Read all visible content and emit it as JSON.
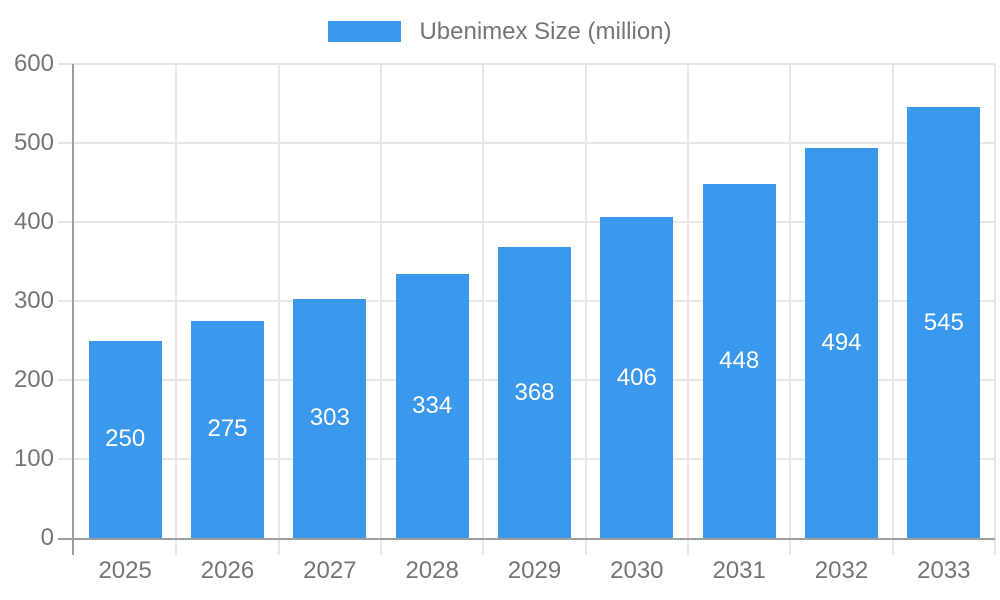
{
  "chart_data": {
    "type": "bar",
    "categories": [
      "2025",
      "2026",
      "2027",
      "2028",
      "2029",
      "2030",
      "2031",
      "2032",
      "2033"
    ],
    "series": [
      {
        "name": "Ubenimex Size (million)",
        "values": [
          250,
          275,
          303,
          334,
          368,
          406,
          448,
          494,
          545
        ]
      }
    ],
    "title": "",
    "xlabel": "",
    "ylabel": "",
    "ylim": [
      0,
      600
    ],
    "ytick_step": 100,
    "yticks": [
      0,
      100,
      200,
      300,
      400,
      500,
      600
    ],
    "grid": true,
    "legend_position": "top",
    "value_labels": "inside-center",
    "colors": {
      "bar": "#3a98ed",
      "value_label": "#ffffff",
      "tick_label": "#757575",
      "legend_text": "#757575",
      "grid_line": "#e7e7e7",
      "axis_line": "#9e9e9e",
      "background": "#ffffff"
    }
  }
}
